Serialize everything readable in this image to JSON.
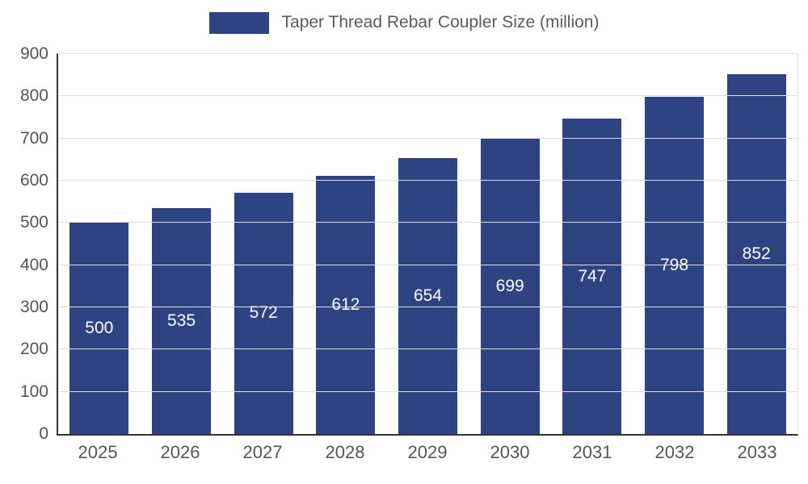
{
  "chart_data": {
    "type": "bar",
    "title": "Taper Thread Rebar Coupler Size (million)",
    "categories": [
      "2025",
      "2026",
      "2027",
      "2028",
      "2029",
      "2030",
      "2031",
      "2032",
      "2033"
    ],
    "values": [
      500,
      535,
      572,
      612,
      654,
      699,
      747,
      798,
      852
    ],
    "xlabel": "",
    "ylabel": "",
    "ylim": [
      0,
      900
    ],
    "ytick_step": 100,
    "grid": true,
    "legend_position": "top",
    "bar_color": "#2e4482",
    "value_label_color": "#ffffff",
    "axis_text_color": "#555555"
  }
}
